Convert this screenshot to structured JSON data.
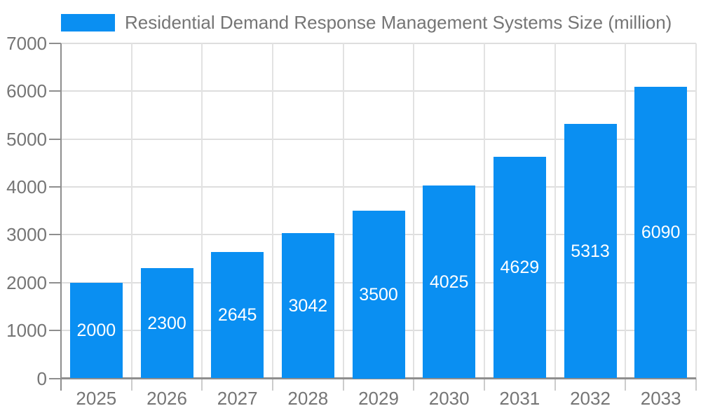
{
  "legend": {
    "label": "Residential Demand Response Management Systems Size (million)"
  },
  "chart_data": {
    "type": "bar",
    "title": "Residential Demand Response Management Systems Size (million)",
    "categories": [
      "2025",
      "2026",
      "2027",
      "2028",
      "2029",
      "2030",
      "2031",
      "2032",
      "2033"
    ],
    "values": [
      2000,
      2300,
      2645,
      3042,
      3500,
      4025,
      4629,
      5313,
      6090
    ],
    "xlabel": "",
    "ylabel": "",
    "ylim": [
      0,
      7000
    ],
    "ytick_step": 1000,
    "ytick_labels": [
      "0",
      "1000",
      "2000",
      "3000",
      "4000",
      "5000",
      "6000",
      "7000"
    ],
    "grid": "horizontal gridlines at each 1000, vertical gridlines at category boundaries",
    "legend_position": "top-left",
    "value_labels": "white, centered inside bars"
  },
  "colors": {
    "bar": "#0a8ff2",
    "axis_line": "#8e8e8e",
    "gridline_horizontal": "#dedede",
    "gridline_vertical": "#e2e2e2",
    "tick_below_axis": "#cccccc",
    "axis_text": "#757575",
    "value_label_text": "#ffffff",
    "background": "#ffffff"
  }
}
